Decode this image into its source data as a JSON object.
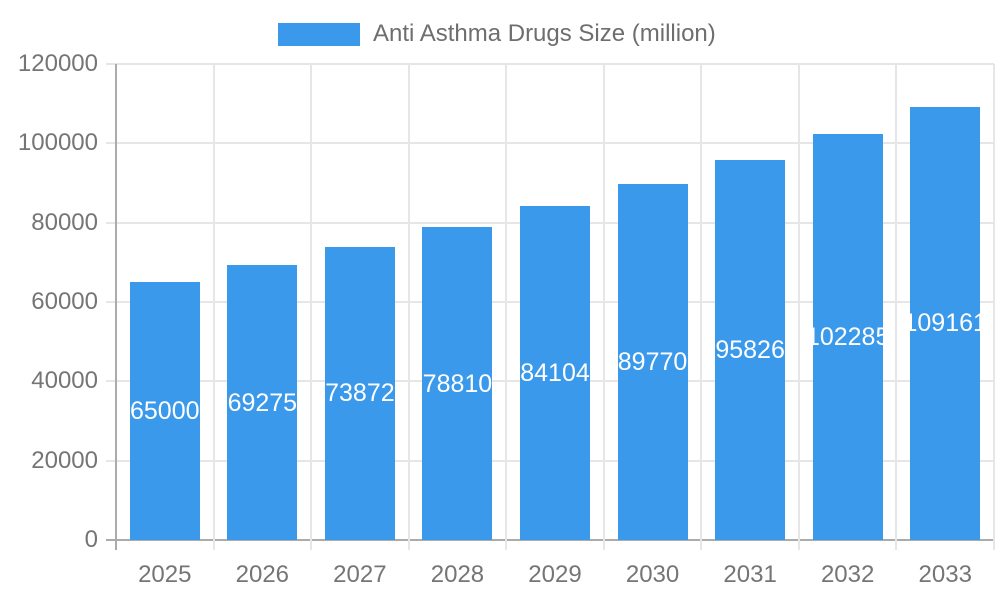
{
  "chart_data": {
    "type": "bar",
    "title": "Anti Asthma Drugs Size (million)",
    "categories": [
      "2025",
      "2026",
      "2027",
      "2028",
      "2029",
      "2030",
      "2031",
      "2032",
      "2033"
    ],
    "values": [
      65000,
      69275,
      73872,
      78810,
      84104,
      89770,
      95826,
      102285,
      109161
    ],
    "series": [
      {
        "name": "Anti Asthma Drugs Size (million)",
        "values": [
          65000,
          69275,
          73872,
          78810,
          84104,
          89770,
          95826,
          102285,
          109161
        ]
      }
    ],
    "xlabel": "",
    "ylabel": "",
    "ylim": [
      0,
      120000
    ],
    "ytick_step": 20000,
    "ytick_labels": [
      "0",
      "20000",
      "40000",
      "60000",
      "80000",
      "100000",
      "120000"
    ],
    "grid": true,
    "legend_position": "top-center",
    "bar_value_labels_shown": true,
    "colors": {
      "bar": "#3B99EC",
      "bar_label_text": "#FFFFFF",
      "grid_line": "#E6E6E6",
      "axis_line": "#ABABAB",
      "axis_text": "#757575",
      "legend_text": "#6E6E6E",
      "background": "#FFFFFF"
    }
  }
}
